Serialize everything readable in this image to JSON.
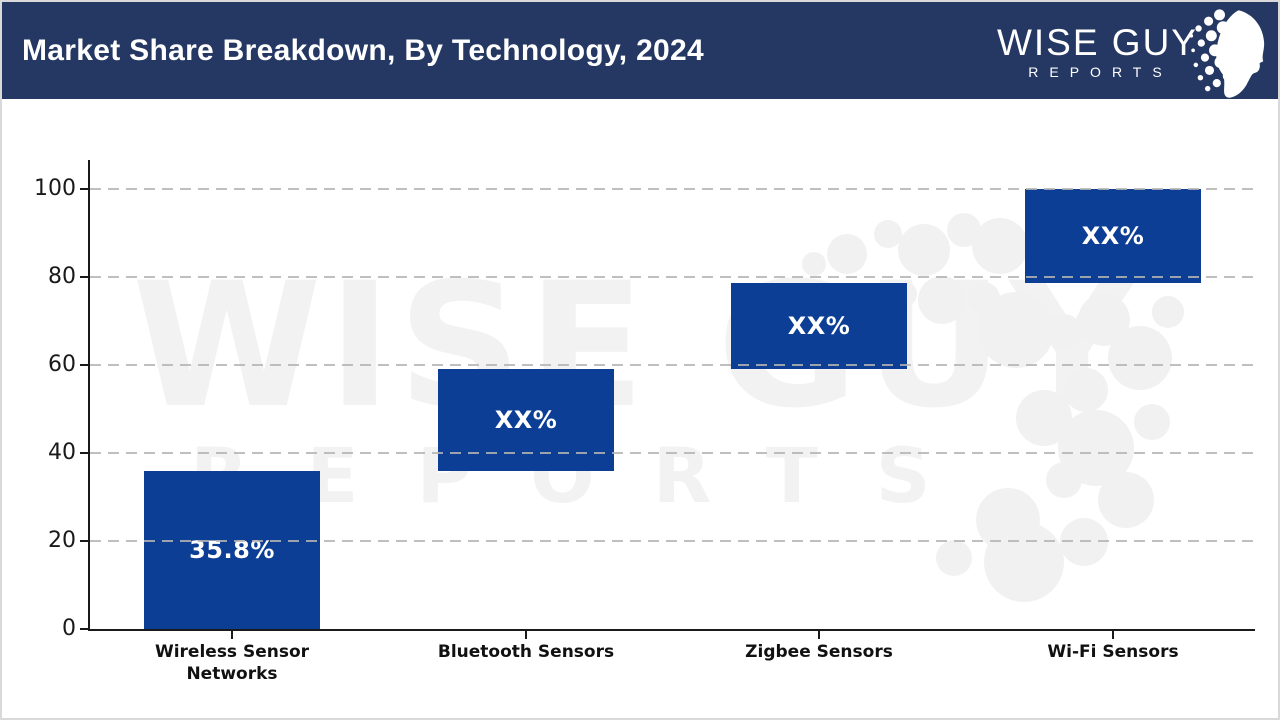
{
  "header": {
    "title": "Market Share Breakdown, By Technology, 2024",
    "logo": {
      "name": "WISE GUY",
      "sub": "REPORTS"
    }
  },
  "watermark": {
    "line1": "WISE GUY",
    "line2": "REPORTS"
  },
  "chart_data": {
    "type": "bar",
    "variant": "waterfall",
    "title": "Market Share Breakdown, By Technology, 2024",
    "categories": [
      "Wireless Sensor Networks",
      "Bluetooth Sensors",
      "Zigbee Sensors",
      "Wi-Fi Sensors"
    ],
    "segments": [
      {
        "category": "Wireless Sensor Networks",
        "start": 0,
        "end": 35.8,
        "label": "35.8%"
      },
      {
        "category": "Bluetooth Sensors",
        "start": 35.8,
        "end": 59.1,
        "label": "XX%"
      },
      {
        "category": "Zigbee Sensors",
        "start": 59.1,
        "end": 78.6,
        "label": "XX%"
      },
      {
        "category": "Wi-Fi Sensors",
        "start": 78.6,
        "end": 100.0,
        "label": "XX%"
      }
    ],
    "ylim": [
      0,
      100
    ],
    "yticks": [
      0,
      20,
      40,
      60,
      80,
      100
    ],
    "xlabel": "",
    "ylabel": "",
    "grid": "horizontal-dashed",
    "legend": "none",
    "bar_color": "#0c3e96",
    "bar_label_color": "#ffffff",
    "header_color": "#253863"
  }
}
